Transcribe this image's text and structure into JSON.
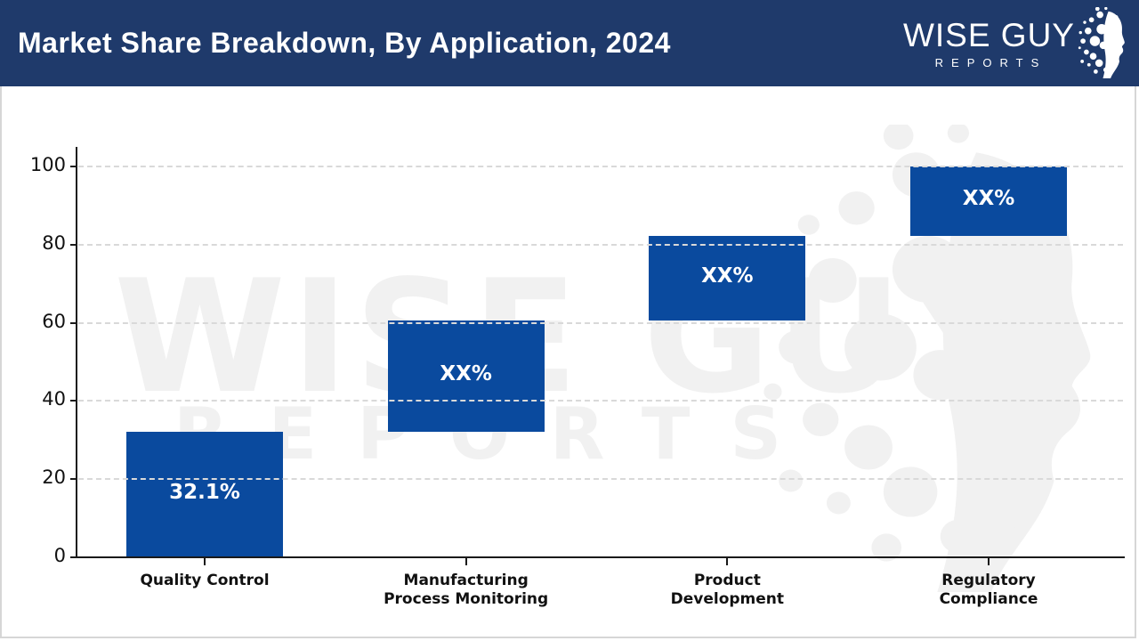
{
  "header": {
    "title": "Market Share Breakdown, By Application, 2024",
    "bg_color": "#1f3a6b",
    "text_color": "#ffffff",
    "logo": {
      "line1": "WISE GUY",
      "line2": "REPORTS",
      "icon": "dotted-head-profile"
    }
  },
  "watermark": {
    "line1": "WISE GUY",
    "line2": "REPORTS",
    "icon": "dotted-head-profile",
    "color": "#f1f1f1"
  },
  "chart_data": {
    "type": "bar",
    "subtype": "waterfall",
    "title": "Market Share Breakdown, By Application, 2024",
    "categories": [
      "Quality Control",
      "Manufacturing Process Monitoring",
      "Product Development",
      "Regulatory Compliance"
    ],
    "categories_display": [
      [
        "Quality Control"
      ],
      [
        "Manufacturing",
        "Process Monitoring"
      ],
      [
        "Product",
        "Development"
      ],
      [
        "Regulatory",
        "Compliance"
      ]
    ],
    "series": [
      {
        "name": "Market Share",
        "segments": [
          {
            "category": "Quality Control",
            "start": 0,
            "end": 32.1,
            "value": 32.1,
            "label": "32.1%"
          },
          {
            "category": "Manufacturing Process Monitoring",
            "start": 32.1,
            "end": 60.5,
            "value": 28.4,
            "label": "XX%"
          },
          {
            "category": "Product Development",
            "start": 60.5,
            "end": 82.2,
            "value": 21.7,
            "label": "XX%"
          },
          {
            "category": "Regulatory Compliance",
            "start": 82.2,
            "end": 100,
            "value": 17.8,
            "label": "XX%"
          }
        ]
      }
    ],
    "ylim": [
      0,
      100
    ],
    "yticks": [
      0,
      20,
      40,
      60,
      80,
      100
    ],
    "xlabel": "",
    "ylabel": "",
    "grid": "horizontal-dashed",
    "legend": "none",
    "bar_color": "#0a4a9e",
    "bar_label_color": "#ffffff",
    "axis_color": "#1a1a1a",
    "gridline_color": "#d9d9d9"
  }
}
